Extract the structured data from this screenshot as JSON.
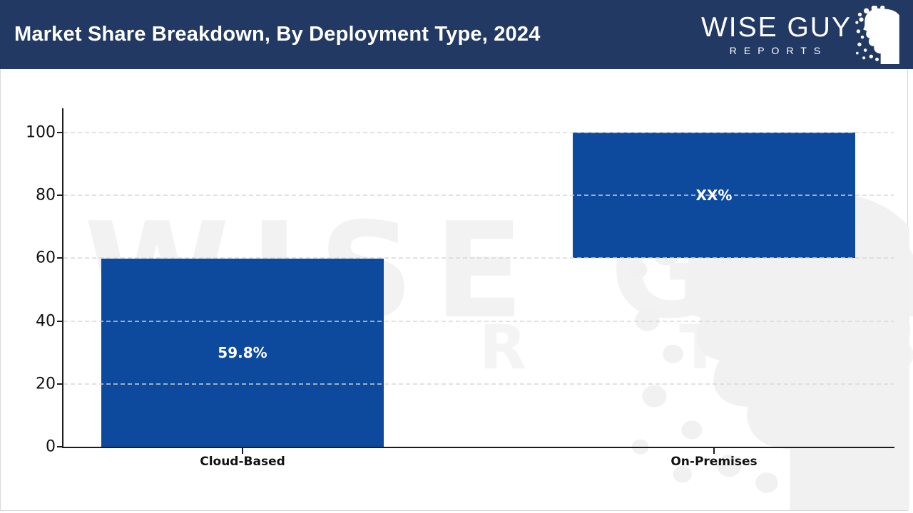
{
  "header": {
    "title": "Market Share Breakdown, By Deployment Type, 2024",
    "logo": {
      "wordmark": "WISE GUY",
      "subtext": "REPORTS"
    }
  },
  "watermark": {
    "wordmark": "WISE GUY",
    "subtext": "R T S"
  },
  "colors": {
    "header_bg": "#223a63",
    "bar": "#0d4a9e",
    "axis": "#1c1c1c",
    "grid": "#e0e0e0",
    "frame": "#d9d9d9",
    "value_label": "#ffffff"
  },
  "chart_data": {
    "type": "bar",
    "title": "Market Share Breakdown, By Deployment Type, 2024",
    "xlabel": "",
    "ylabel": "",
    "categories": [
      "Cloud-Based",
      "On-Premises"
    ],
    "bars": [
      {
        "category": "Cloud-Based",
        "from": 0,
        "to": 59.8,
        "label": "59.8%"
      },
      {
        "category": "On-Premises",
        "from": 60,
        "to": 100,
        "label": "XX%"
      }
    ],
    "yticks": [
      0,
      20,
      40,
      60,
      80,
      100
    ],
    "ylim": [
      0,
      108
    ],
    "grid": "horizontal-dashed-over-bars",
    "legend": "none"
  }
}
